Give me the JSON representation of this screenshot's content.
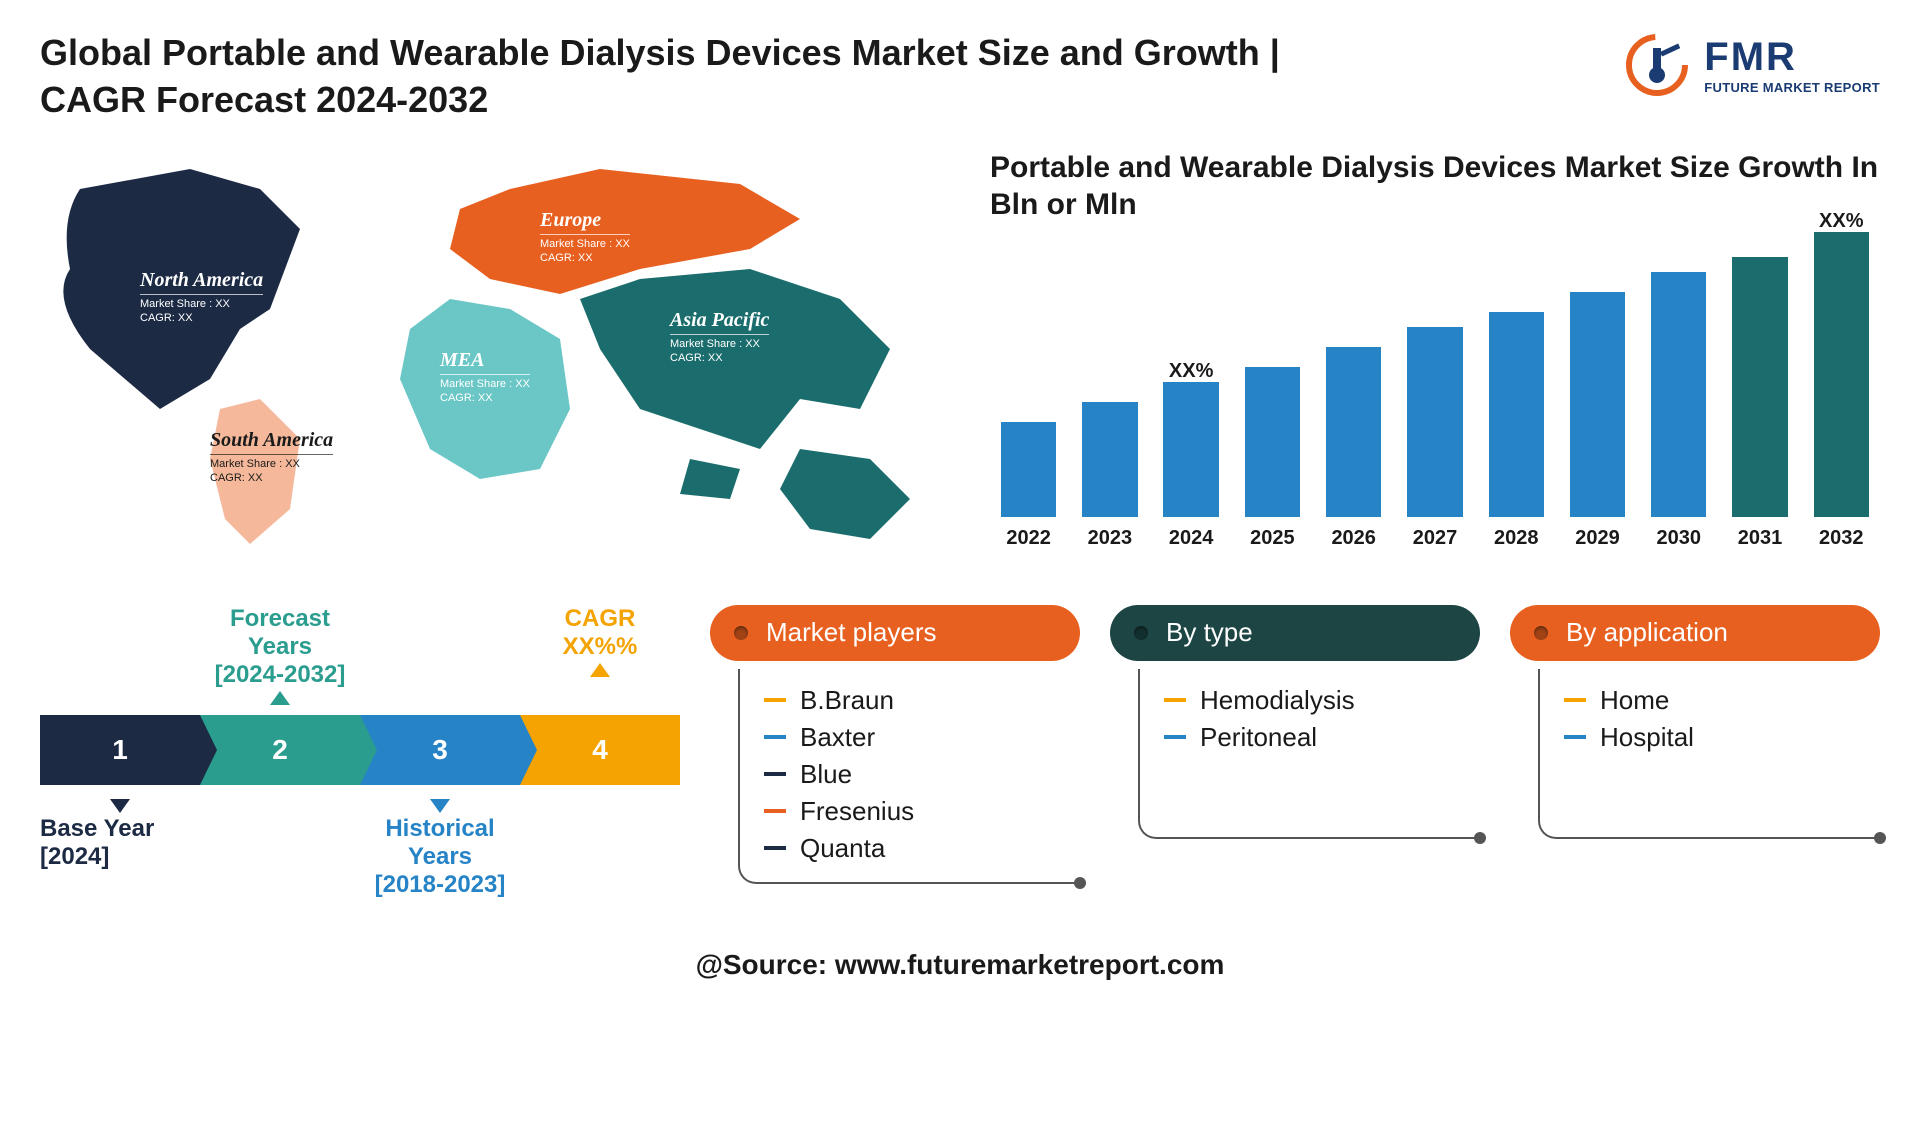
{
  "title": "Global Portable and Wearable Dialysis Devices  Market Size and Growth | CAGR Forecast 2024-2032",
  "logo": {
    "big": "FMR",
    "small": "FUTURE MARKET REPORT",
    "icon_color": "#e8601f",
    "text_color": "#1a3c73"
  },
  "map": {
    "regions": [
      {
        "key": "north_america",
        "name": "North America",
        "share": "Market Share : XX",
        "cagr": "CAGR: XX",
        "color": "#1c2a44"
      },
      {
        "key": "south_america",
        "name": "South America",
        "share": "Market Share : XX",
        "cagr": "CAGR: XX",
        "color": "#f5b89a"
      },
      {
        "key": "europe",
        "name": "Europe",
        "share": "Market Share : XX",
        "cagr": "CAGR: XX",
        "color": "#e8601f"
      },
      {
        "key": "mea",
        "name": "MEA",
        "share": "Market Share : XX",
        "cagr": "CAGR: XX",
        "color": "#6ac7c6"
      },
      {
        "key": "asia_pacific",
        "name": "Asia Pacific",
        "share": "Market Share : XX",
        "cagr": "CAGR: XX",
        "color": "#1a6d6c"
      }
    ]
  },
  "chart": {
    "title": "Portable and Wearable Dialysis Devices Market Size Growth In\nBln or Mln",
    "type": "bar",
    "years": [
      "2022",
      "2023",
      "2024",
      "2025",
      "2026",
      "2027",
      "2028",
      "2029",
      "2030",
      "2031",
      "2032"
    ],
    "values": [
      95,
      115,
      135,
      150,
      170,
      190,
      205,
      225,
      245,
      260,
      285
    ],
    "ymax": 290,
    "bar_color": "#2683c6",
    "bar_color_last_few": "#1a6d6c",
    "bar_last_dark_index_from": 9,
    "label_fontsize": 20,
    "annotations": [
      {
        "index": 2,
        "text": "XX%"
      },
      {
        "index": 10,
        "text": "XX%"
      }
    ]
  },
  "timeline": {
    "forecast_label": "Forecast Years",
    "forecast_range": "[2024-2032]",
    "cagr_label": "CAGR",
    "cagr_value": "XX%%",
    "base_label": "Base Year",
    "base_value": "[2024]",
    "hist_label": "Historical Years",
    "hist_range": "[2018-2023]",
    "segments": [
      {
        "n": "1",
        "color": "#1c2a44"
      },
      {
        "n": "2",
        "color": "#2a9d8f"
      },
      {
        "n": "3",
        "color": "#2683c6"
      },
      {
        "n": "4",
        "color": "#f4a300"
      }
    ]
  },
  "pills": {
    "players": {
      "title": "Market players",
      "pill_color": "#e8601f",
      "items": [
        {
          "label": "B.Braun",
          "tick": "#f4a300"
        },
        {
          "label": "Baxter",
          "tick": "#2683c6"
        },
        {
          "label": "Blue",
          "tick": "#1c2a44"
        },
        {
          "label": "Fresenius",
          "tick": "#e8601f"
        },
        {
          "label": "Quanta",
          "tick": "#1c2a44"
        }
      ]
    },
    "type": {
      "title": "By type",
      "pill_color": "#1c4544",
      "items": [
        {
          "label": "Hemodialysis",
          "tick": "#f4a300"
        },
        {
          "label": "Peritoneal",
          "tick": "#2683c6"
        }
      ]
    },
    "application": {
      "title": "By application",
      "pill_color": "#e8601f",
      "items": [
        {
          "label": "Home",
          "tick": "#f4a300"
        },
        {
          "label": "Hospital",
          "tick": "#2683c6"
        }
      ]
    }
  },
  "source": "@Source: www.futuremarketreport.com"
}
